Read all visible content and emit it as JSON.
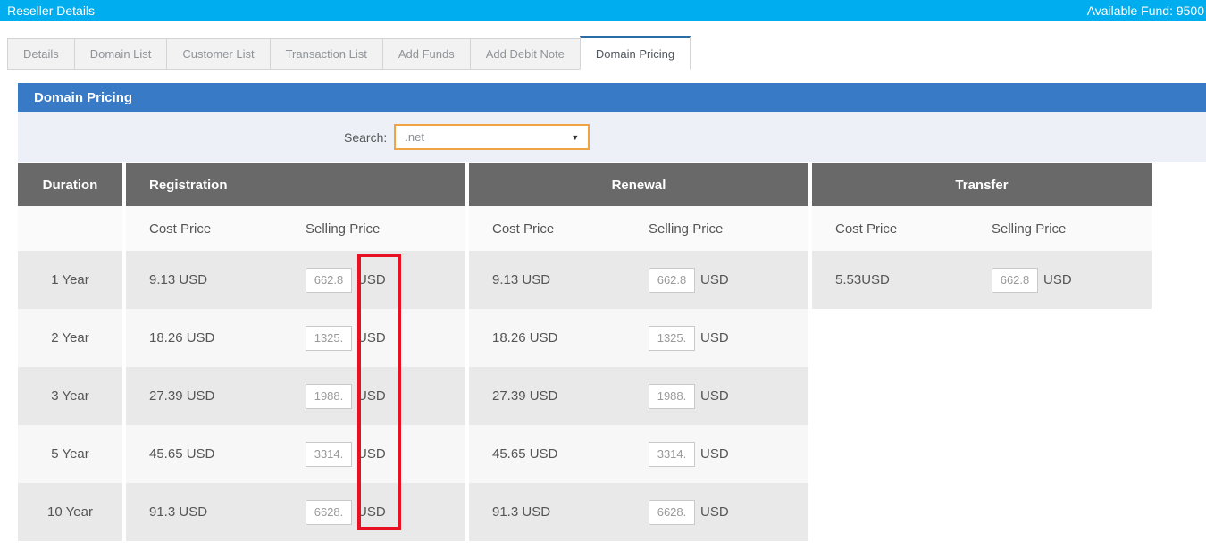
{
  "topbar": {
    "title": "Reseller Details",
    "available_fund": "Available Fund: 9500"
  },
  "tabs": [
    {
      "label": "Details",
      "active": false
    },
    {
      "label": "Domain List",
      "active": false
    },
    {
      "label": "Customer List",
      "active": false
    },
    {
      "label": "Transaction List",
      "active": false
    },
    {
      "label": "Add Funds",
      "active": false
    },
    {
      "label": "Add Debit Note",
      "active": false
    },
    {
      "label": "Domain Pricing",
      "active": true
    }
  ],
  "panel": {
    "title": "Domain Pricing"
  },
  "filter": {
    "label": "Search:",
    "selected": ".net",
    "arrow_icon": "▼"
  },
  "table": {
    "group_headers": {
      "duration": "Duration",
      "registration": "Registration",
      "renewal": "Renewal",
      "transfer": "Transfer"
    },
    "subheaders": {
      "cost": "Cost Price",
      "selling": "Selling Price"
    },
    "currency_label": "USD",
    "rows": [
      {
        "duration": "1 Year",
        "reg_cost": "9.13 USD",
        "reg_sell": "662.8",
        "ren_cost": "9.13 USD",
        "ren_sell": "662.8",
        "tra_cost": "5.53USD",
        "tra_sell": "662.8"
      },
      {
        "duration": "2 Year",
        "reg_cost": "18.26 USD",
        "reg_sell": "1325.",
        "ren_cost": "18.26 USD",
        "ren_sell": "1325."
      },
      {
        "duration": "3 Year",
        "reg_cost": "27.39 USD",
        "reg_sell": "1988.",
        "ren_cost": "27.39 USD",
        "ren_sell": "1988."
      },
      {
        "duration": "5 Year",
        "reg_cost": "45.65 USD",
        "reg_sell": "3314.",
        "ren_cost": "45.65 USD",
        "ren_sell": "3314."
      },
      {
        "duration": "10 Year",
        "reg_cost": "91.3 USD",
        "reg_sell": "6628.",
        "ren_cost": "91.3 USD",
        "ren_sell": "6628."
      }
    ]
  },
  "annotation": {
    "type": "red-rectangle",
    "color": "#e81123"
  }
}
